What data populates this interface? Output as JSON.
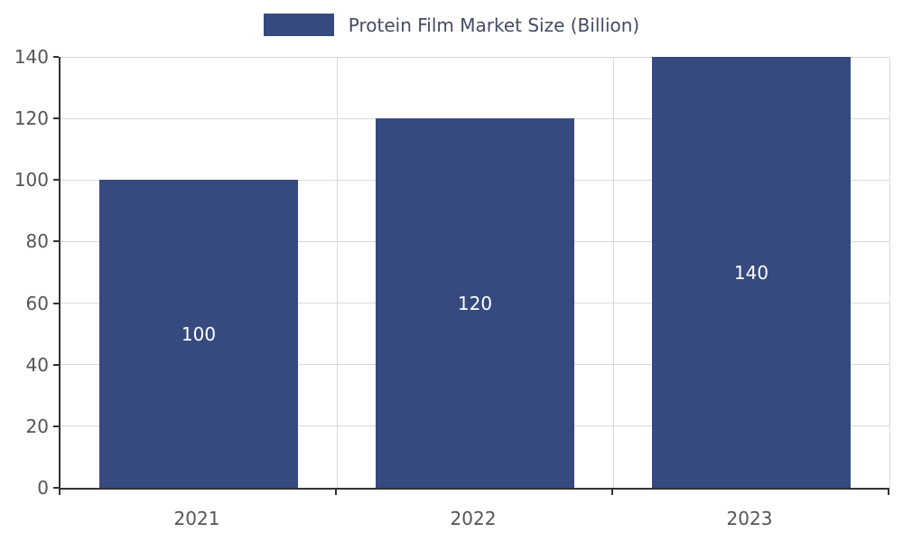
{
  "chart_data": {
    "type": "bar",
    "title": "Protein Film Market Size (Billion)",
    "legend_entries": [
      "Protein Film Market Size (Billion)"
    ],
    "legend_position": "top-center",
    "categories": [
      "2021",
      "2022",
      "2023"
    ],
    "values": [
      100,
      120,
      140
    ],
    "bar_value_labels": [
      "100",
      "120",
      "140"
    ],
    "xlabel": "",
    "ylabel": "",
    "ylim": [
      0,
      140
    ],
    "yticks": [
      0,
      20,
      40,
      60,
      80,
      100,
      120,
      140
    ],
    "grid": true,
    "colors": {
      "bar": "#364A7F",
      "bar_label_text": "#FFFFFF",
      "axis_line": "#333333",
      "gridline": "#D9D9D9",
      "tick_label": "#555555",
      "legend_text": "#434A63",
      "background": "#FFFFFF"
    }
  }
}
